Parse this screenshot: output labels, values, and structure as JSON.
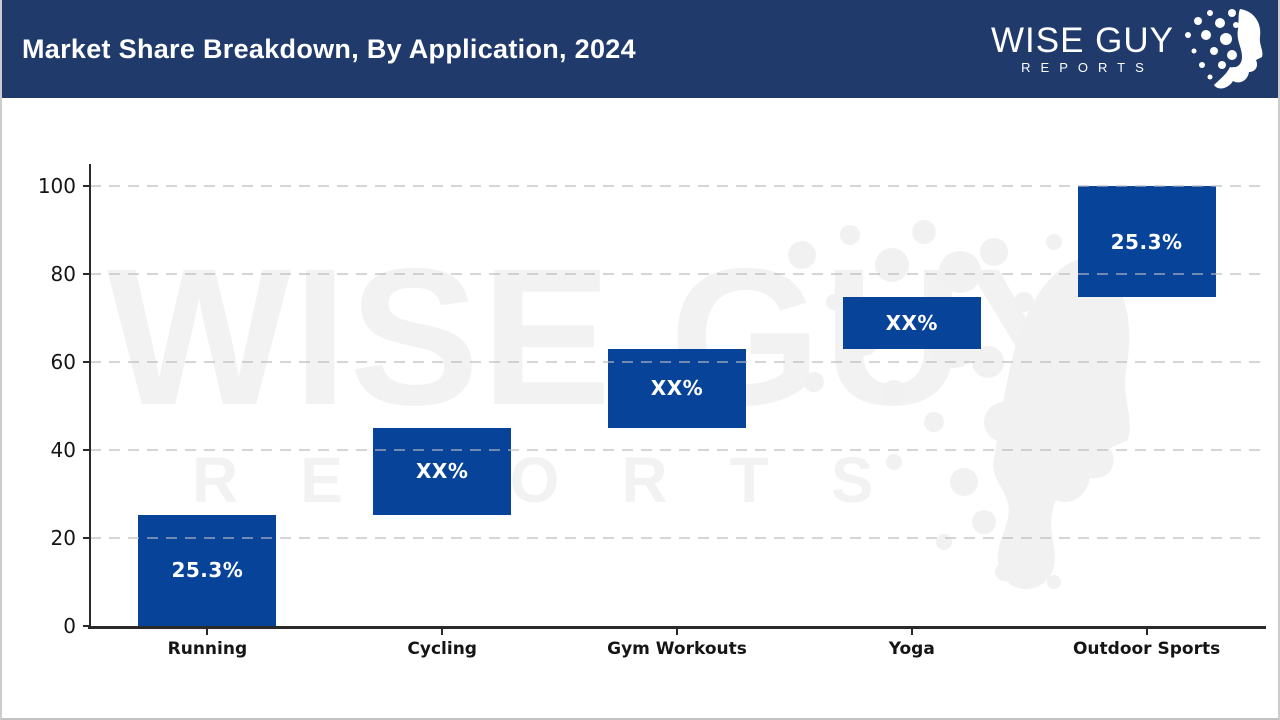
{
  "header": {
    "title": "Market Share Breakdown, By Application, 2024",
    "bg_color": "#203a6b",
    "logo": {
      "line1": "WISE GUY",
      "line2": "REPORTS"
    }
  },
  "watermark": {
    "line1": "WISE GUY",
    "line2": "REPORTS"
  },
  "chart_data": {
    "type": "bar",
    "subtype": "waterfall",
    "title": "Market Share Breakdown, By Application, 2024",
    "xlabel": "",
    "ylabel": "",
    "categories": [
      "Running",
      "Cycling",
      "Gym Workouts",
      "Yoga",
      "Outdoor Sports"
    ],
    "segments": [
      {
        "category": "Running",
        "start": 0,
        "end": 25.3,
        "label": "25.3%"
      },
      {
        "category": "Cycling",
        "start": 25.3,
        "end": 45,
        "label": "XX%"
      },
      {
        "category": "Gym Workouts",
        "start": 45,
        "end": 63,
        "label": "XX%"
      },
      {
        "category": "Yoga",
        "start": 63,
        "end": 74.7,
        "label": "XX%"
      },
      {
        "category": "Outdoor Sports",
        "start": 74.7,
        "end": 100,
        "label": "25.3%"
      }
    ],
    "y_ticks": [
      0,
      20,
      40,
      60,
      80,
      100
    ],
    "ylim": [
      0,
      100
    ],
    "bar_color": "#08439a",
    "grid": "horizontal dashed",
    "legend": "none"
  }
}
